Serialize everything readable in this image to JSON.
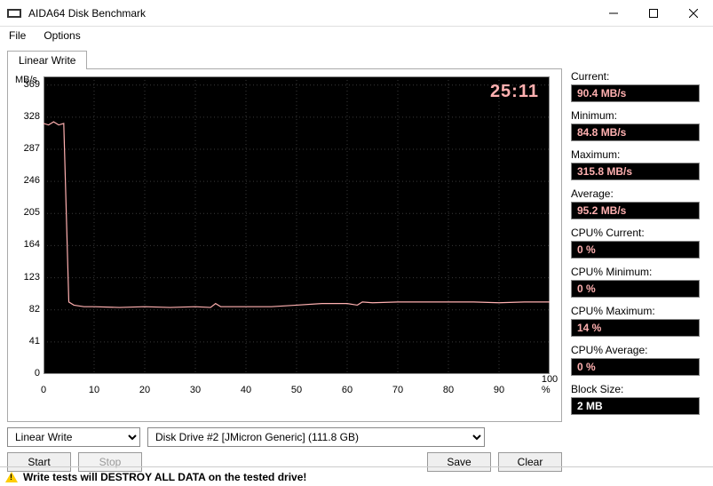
{
  "window": {
    "title": "AIDA64 Disk Benchmark"
  },
  "menu": {
    "file": "File",
    "options": "Options"
  },
  "tab": {
    "label": "Linear Write"
  },
  "chart": {
    "type": "line",
    "y_unit_label": "MB/s",
    "timer": "25:11",
    "timer_color": "#ffb0b0",
    "line_color": "#ffb0b0",
    "background_color": "#000000",
    "grid_color": "#3a3a3a",
    "axis_color": "#888888",
    "xlim": [
      0,
      100
    ],
    "ylim": [
      0,
      380
    ],
    "x_ticks": [
      0,
      10,
      20,
      30,
      40,
      50,
      60,
      70,
      80,
      90,
      100
    ],
    "x_tick_suffix": " %",
    "y_ticks": [
      0,
      41,
      82,
      123,
      164,
      205,
      246,
      287,
      328,
      369
    ],
    "series_x": [
      0,
      1,
      2,
      3,
      4,
      5,
      6,
      8,
      10,
      15,
      20,
      25,
      30,
      33,
      34,
      35,
      36,
      40,
      45,
      50,
      55,
      60,
      62,
      63,
      65,
      70,
      75,
      80,
      85,
      90,
      95,
      100
    ],
    "series_y": [
      320,
      318,
      322,
      318,
      320,
      92,
      88,
      86,
      86,
      85,
      86,
      85,
      86,
      85,
      90,
      86,
      86,
      86,
      86,
      88,
      90,
      90,
      88,
      92,
      91,
      92,
      92,
      92,
      92,
      91,
      92,
      92
    ]
  },
  "stats": {
    "current": {
      "label": "Current:",
      "value": "90.4 MB/s"
    },
    "minimum": {
      "label": "Minimum:",
      "value": "84.8 MB/s"
    },
    "maximum": {
      "label": "Maximum:",
      "value": "315.8 MB/s"
    },
    "average": {
      "label": "Average:",
      "value": "95.2 MB/s"
    },
    "cpu_current": {
      "label": "CPU% Current:",
      "value": "0 %"
    },
    "cpu_minimum": {
      "label": "CPU% Minimum:",
      "value": "0 %"
    },
    "cpu_maximum": {
      "label": "CPU% Maximum:",
      "value": "14 %"
    },
    "cpu_average": {
      "label": "CPU% Average:",
      "value": "0 %"
    },
    "block_size": {
      "label": "Block Size:",
      "value": "2 MB"
    }
  },
  "controls": {
    "mode_option": "Linear Write",
    "drive_option": "Disk Drive #2  [JMicron Generic]  (111.8 GB)",
    "start": "Start",
    "stop": "Stop",
    "save": "Save",
    "clear": "Clear"
  },
  "warning": {
    "text": "Write tests will DESTROY ALL DATA on the tested drive!"
  }
}
